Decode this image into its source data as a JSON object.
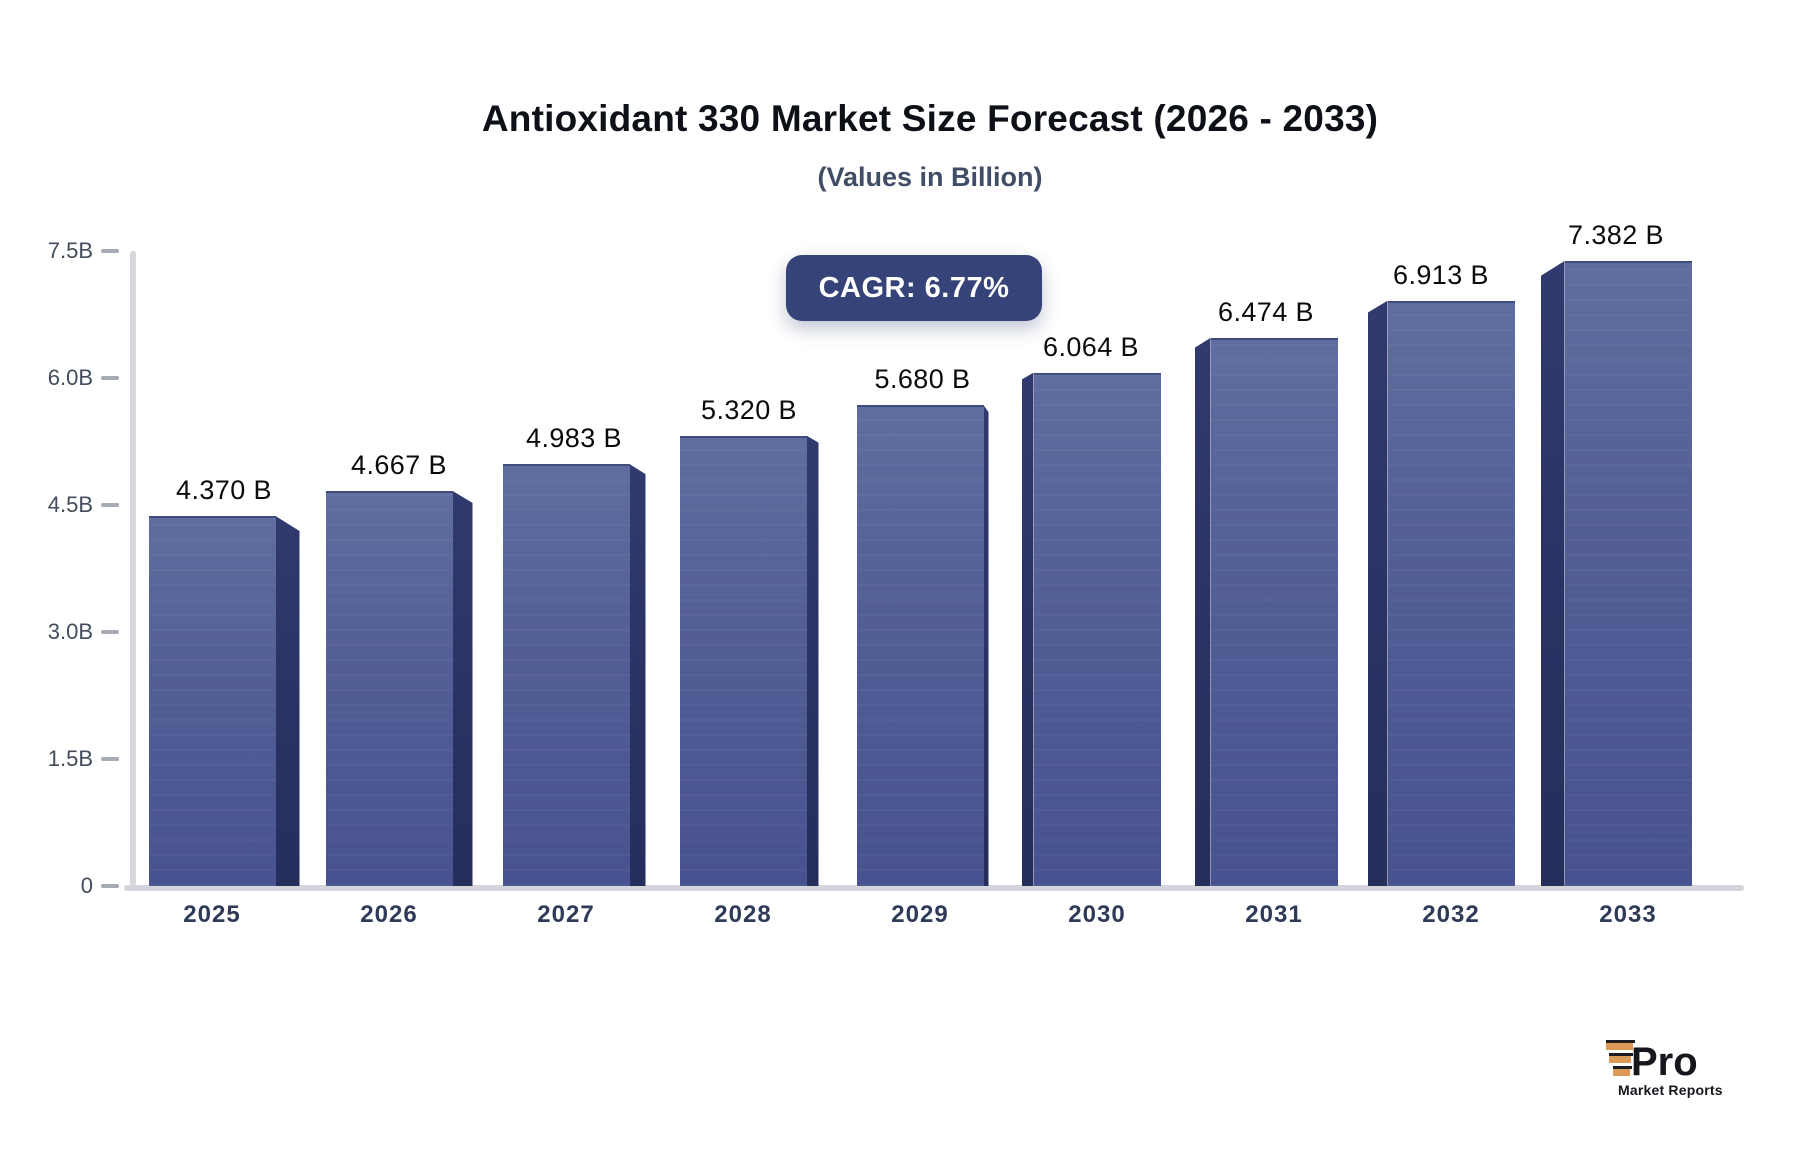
{
  "header": {
    "title": "Antioxidant 330 Market Size Forecast (2026 - 2033)",
    "subtitle": "(Values in Billion)",
    "cagr_label": "CAGR: 6.77%"
  },
  "chart_data": {
    "type": "bar",
    "title": "Antioxidant 330 Market Size Forecast (2026 - 2033)",
    "subtitle": "(Values in Billion)",
    "xlabel": "",
    "ylabel": "Values in Billion",
    "ylim": [
      0,
      7.5
    ],
    "grid": false,
    "legend": false,
    "categories": [
      "2025",
      "2026",
      "2027",
      "2028",
      "2029",
      "2030",
      "2031",
      "2032",
      "2033"
    ],
    "values": [
      4.37,
      4.667,
      4.983,
      5.32,
      5.68,
      6.064,
      6.474,
      6.913,
      7.382
    ],
    "value_labels": [
      "4.370 B",
      "4.667 B",
      "4.983 B",
      "5.320 B",
      "5.680 B",
      "6.064 B",
      "6.474 B",
      "6.913 B",
      "7.382 B"
    ],
    "yticks": [
      {
        "label": "7.5B",
        "value": 7.5
      },
      {
        "label": "6.0B",
        "value": 6.0
      },
      {
        "label": "4.5B",
        "value": 4.5
      },
      {
        "label": "3.0B",
        "value": 3.0
      },
      {
        "label": "1.5B",
        "value": 1.5
      },
      {
        "label": "0",
        "value": 0
      }
    ],
    "annotations": [
      "CAGR: 6.77%"
    ]
  },
  "colors": {
    "bar_face_top": "#5f6da0",
    "bar_face_bottom": "#475290",
    "bar_side": "#2a3263",
    "badge_background": "#364379",
    "badge_text": "#ffffff",
    "axis_line": "#d6d7db",
    "y_tick_label": "#434c5c",
    "x_tick_label": "#2e3a58",
    "value_label": "#0b0b0c",
    "logo_orange": "#dd9a57"
  },
  "branding": {
    "name": "Pro",
    "tagline": "Market Reports"
  }
}
